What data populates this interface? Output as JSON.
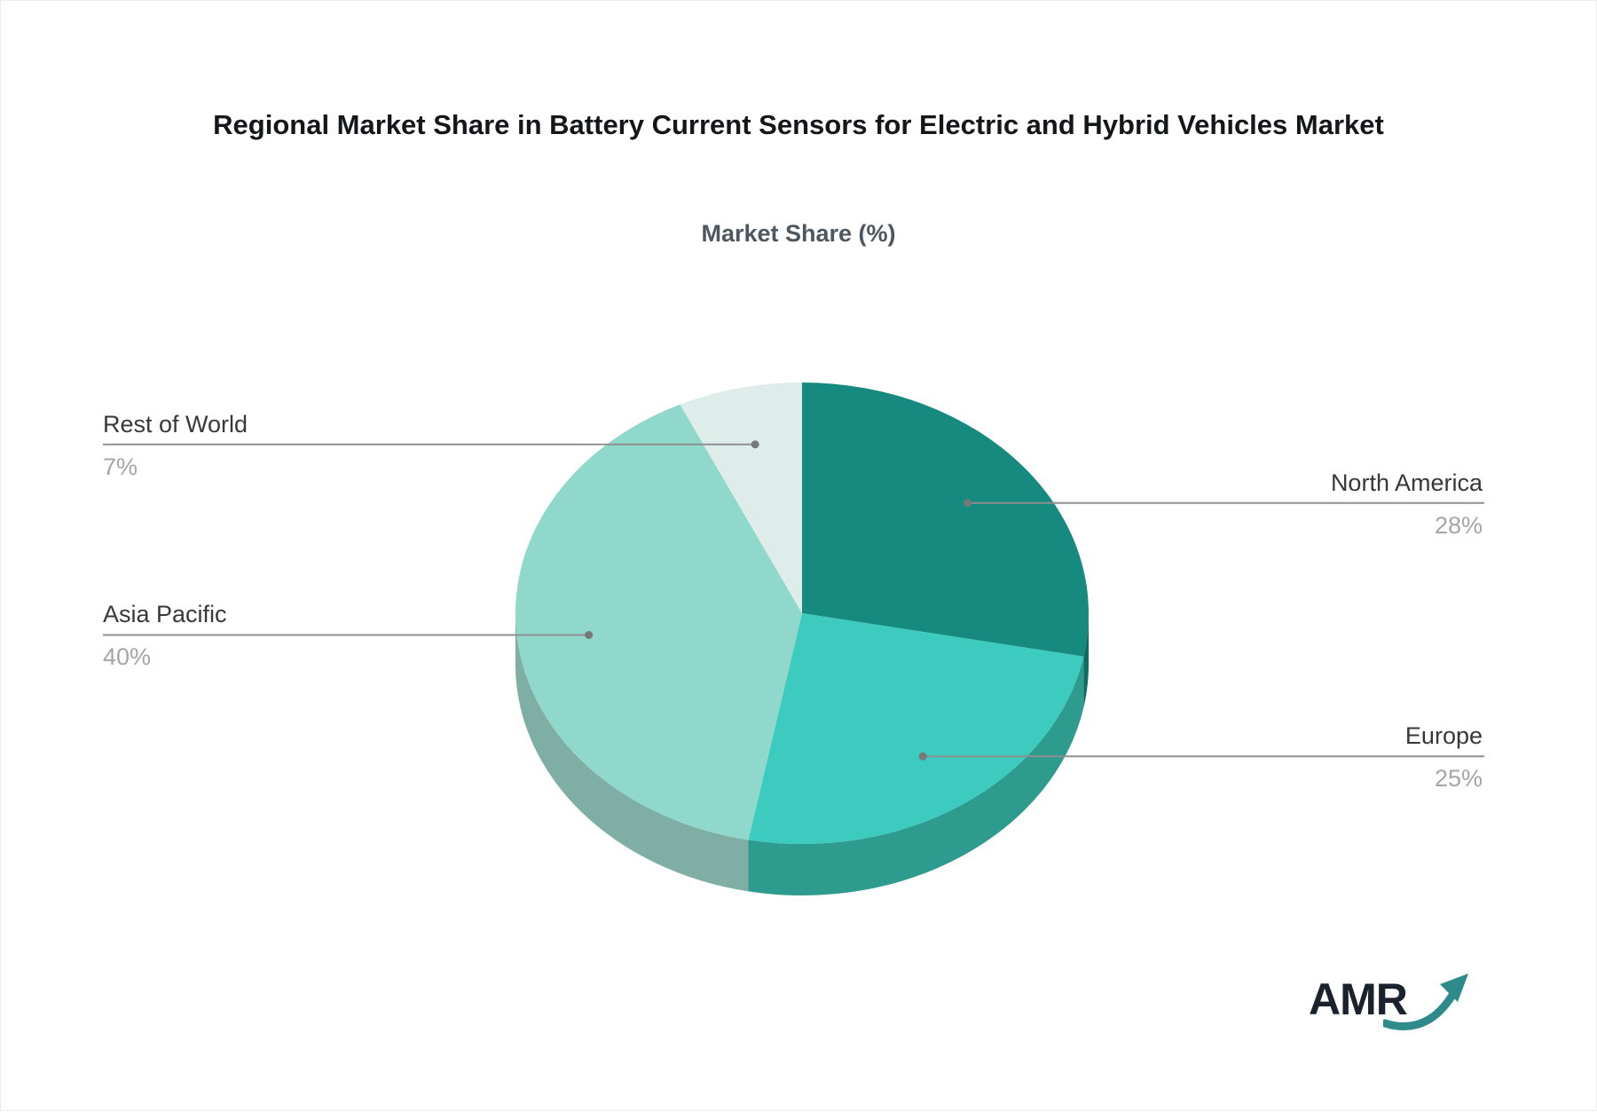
{
  "page": {
    "background": "#ffffff",
    "border_color": "#e9eef6"
  },
  "header": {
    "title": "Regional Market Share in Battery Current Sensors for Electric and Hybrid Vehicles Market",
    "subtitle": "Market Share (%)"
  },
  "chart_data": {
    "type": "pie",
    "style": "3d",
    "title": "Regional Market Share in Battery Current Sensors for Electric and Hybrid Vehicles Market",
    "subtitle": "Market Share (%)",
    "start_angle_deg": 0,
    "direction": "clockwise",
    "legend_position": "none",
    "categories": [
      "North America",
      "Europe",
      "Asia Pacific",
      "Rest of World"
    ],
    "values": [
      28,
      25,
      40,
      7
    ],
    "slices": [
      {
        "label": "North America",
        "value": 28,
        "pct_label": "28%",
        "color": "#168a7e",
        "side_color": "#0d6d63",
        "label_side": "right"
      },
      {
        "label": "Europe",
        "value": 25,
        "pct_label": "25%",
        "color": "#3ccbbe",
        "side_color": "#2e9b8f",
        "label_side": "right"
      },
      {
        "label": "Asia Pacific",
        "value": 40,
        "pct_label": "40%",
        "color": "#90d8cc",
        "side_color": "#7faea4",
        "label_side": "left"
      },
      {
        "label": "Rest of World",
        "value": 7,
        "pct_label": "7%",
        "color": "#deedea",
        "side_color": "#c9ddd9",
        "label_side": "left"
      }
    ],
    "leader_line_color": "#8f8f8f",
    "leader_dot_color": "#787878",
    "label_text_color": "#383838",
    "pct_text_color": "#a5a5a5"
  },
  "logo": {
    "text": "AMR",
    "text_color": "#1a222e",
    "arrow_color": "#2f8a8b",
    "arrow_icon": "growth-arrow-icon"
  }
}
